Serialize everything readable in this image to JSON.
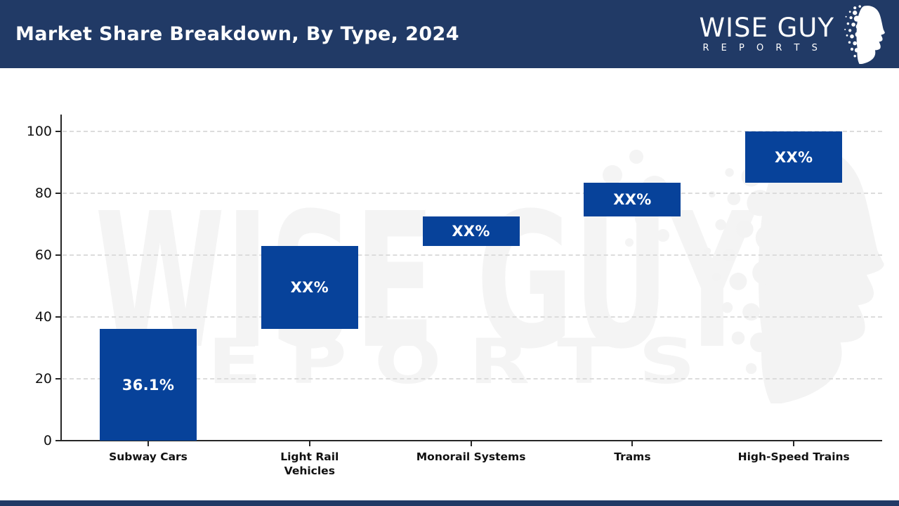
{
  "header": {
    "title": "Market Share Breakdown, By Type, 2024",
    "bg_color": "#213a66",
    "logo": {
      "name": "Wise Guy Reports",
      "line1": "WISE GUY",
      "line2": "R E P O R T S"
    }
  },
  "watermark": {
    "line1": "WISE GUY",
    "line2": "R E P O R T S",
    "color": "#f4f4f4"
  },
  "chart_data": {
    "type": "bar",
    "subtype": "waterfall",
    "title": "Market Share Breakdown, By Type, 2024",
    "categories": [
      "Subway Cars",
      "Light Rail Vehicles",
      "Monorail Systems",
      "Trams",
      "High-Speed Trains"
    ],
    "category_lines": [
      [
        "Subway Cars"
      ],
      [
        "Light Rail",
        "Vehicles"
      ],
      [
        "Monorail Systems"
      ],
      [
        "Trams"
      ],
      [
        "High-Speed Trains"
      ]
    ],
    "segments": [
      {
        "category": "Subway Cars",
        "start": 0,
        "end": 36.1,
        "delta": 36.1,
        "label": "36.1%"
      },
      {
        "category": "Light Rail Vehicles",
        "start": 36.1,
        "end": 63.0,
        "delta": 26.9,
        "label": "XX%"
      },
      {
        "category": "Monorail Systems",
        "start": 63.0,
        "end": 72.6,
        "delta": 9.6,
        "label": "XX%"
      },
      {
        "category": "Trams",
        "start": 72.6,
        "end": 83.4,
        "delta": 10.8,
        "label": "XX%"
      },
      {
        "category": "High-Speed Trains",
        "start": 83.4,
        "end": 100.0,
        "delta": 16.6,
        "label": "XX%"
      }
    ],
    "yticks": [
      0,
      20,
      40,
      60,
      80,
      100
    ],
    "ylim": [
      0,
      105
    ],
    "xlabel": "",
    "ylabel": "",
    "grid": "horizontal-dashed",
    "legend": "none",
    "bar_color": "#07429a",
    "label_color": "#ffffff",
    "axis_color": "#262626",
    "grid_color": "#dcdcdc"
  }
}
